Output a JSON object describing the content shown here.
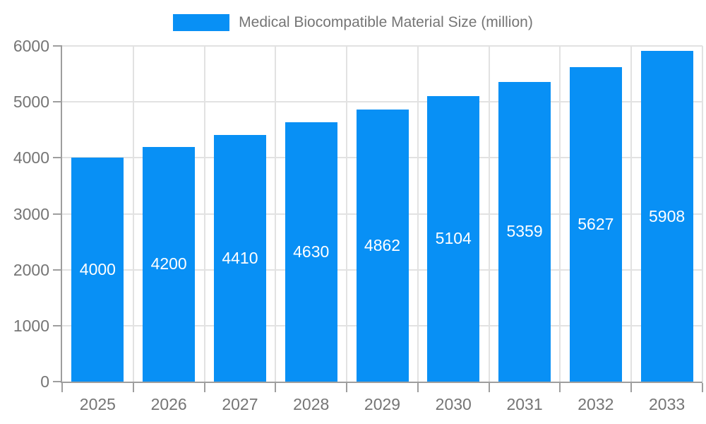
{
  "chart_data": {
    "type": "bar",
    "title": "Medical Biocompatible Material Size (million)",
    "categories": [
      "2025",
      "2026",
      "2027",
      "2028",
      "2029",
      "2030",
      "2031",
      "2032",
      "2033"
    ],
    "values": [
      4000,
      4200,
      4410,
      4630,
      4862,
      5104,
      5359,
      5627,
      5908
    ],
    "xlabel": "",
    "ylabel": "",
    "ylim": [
      0,
      6000
    ],
    "ytick_interval": 1000,
    "yticks": [
      0,
      1000,
      2000,
      3000,
      4000,
      5000,
      6000
    ],
    "grid": true,
    "legend_position": "top-center",
    "bar_labels_inside": true,
    "colors": {
      "bar": "#0890F5",
      "bar_label": "#ffffff",
      "axis_line": "#9e9e9e",
      "gridline": "#e2e2e2",
      "text": "#757575",
      "background": "#ffffff"
    }
  }
}
